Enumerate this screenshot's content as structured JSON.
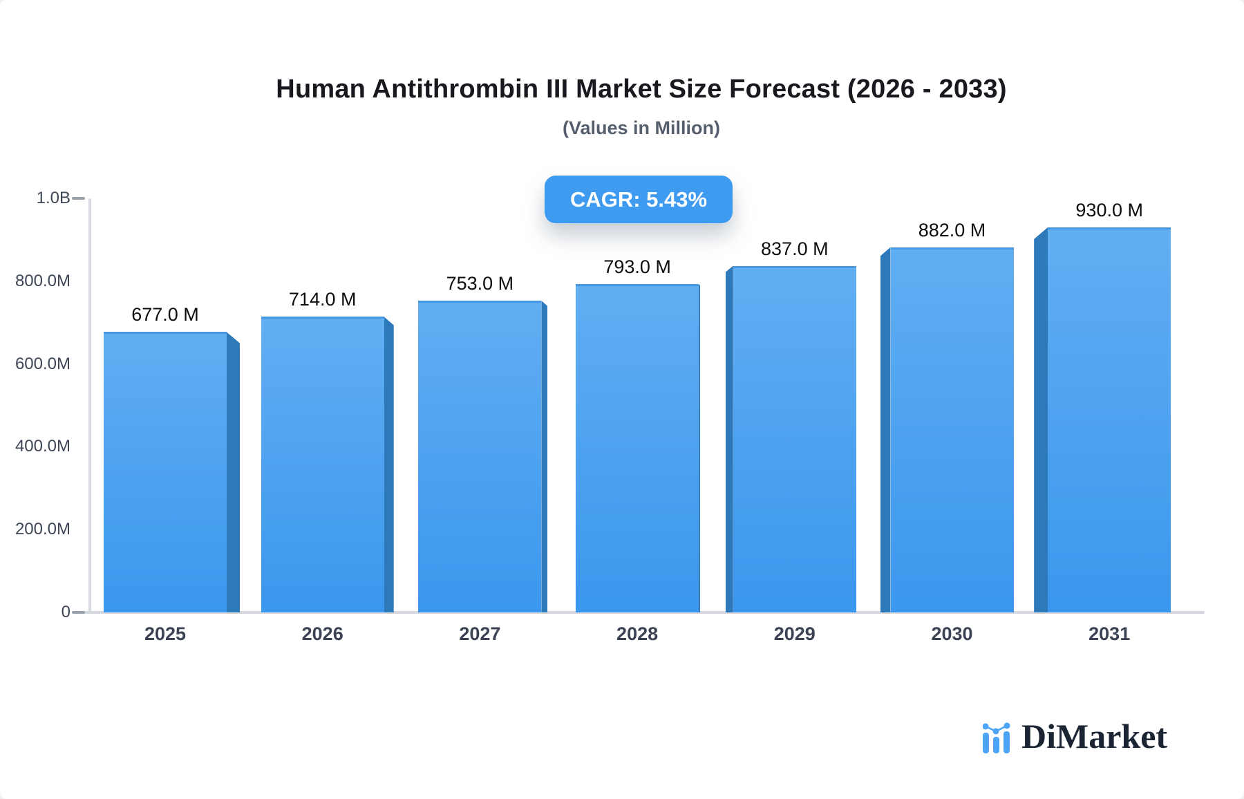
{
  "title": "Human Antithrombin III Market Size Forecast (2026 - 2033)",
  "subtitle": "(Values in Million)",
  "badge": {
    "label": "CAGR: 5.43%",
    "bg_color": "#3f9bf0",
    "text_color": "#ffffff"
  },
  "chart_data": {
    "type": "bar",
    "categories": [
      "2025",
      "2026",
      "2027",
      "2028",
      "2029",
      "2030",
      "2031"
    ],
    "values": [
      677,
      714,
      753,
      793,
      837,
      882,
      930
    ],
    "value_labels": [
      "677.0 M",
      "714.0 M",
      "753.0 M",
      "793.0 M",
      "837.0 M",
      "882.0 M",
      "930.0 M"
    ],
    "title": "Human Antithrombin III Market Size Forecast (2026 - 2033)",
    "subtitle": "(Values in Million)",
    "xlabel": "",
    "ylabel": "",
    "ylim": [
      0,
      1000
    ],
    "yticks": [
      {
        "label": "1.0B",
        "value": 1000,
        "dash": true
      },
      {
        "label": "800.0M",
        "value": 800,
        "dash": false
      },
      {
        "label": "600.0M",
        "value": 600,
        "dash": false
      },
      {
        "label": "400.0M",
        "value": 400,
        "dash": false
      },
      {
        "label": "200.0M",
        "value": 200,
        "dash": false
      },
      {
        "label": "0",
        "value": 0,
        "dash": true
      }
    ],
    "grid": false,
    "legend": false,
    "bar_style_3d": true,
    "bar_color_top": "#61aef2",
    "bar_color_bottom": "#3b97ee",
    "bar_side_color": "#2e79ba",
    "axis_color": "#d6d9df",
    "tick_label_color": "#3e4656",
    "value_label_color": "#0c0d0f"
  },
  "logo": {
    "text": "DiMarket",
    "icon": "mini-bar-chart-icon",
    "icon_color": "#4da3f5",
    "text_color": "#1a2433"
  }
}
